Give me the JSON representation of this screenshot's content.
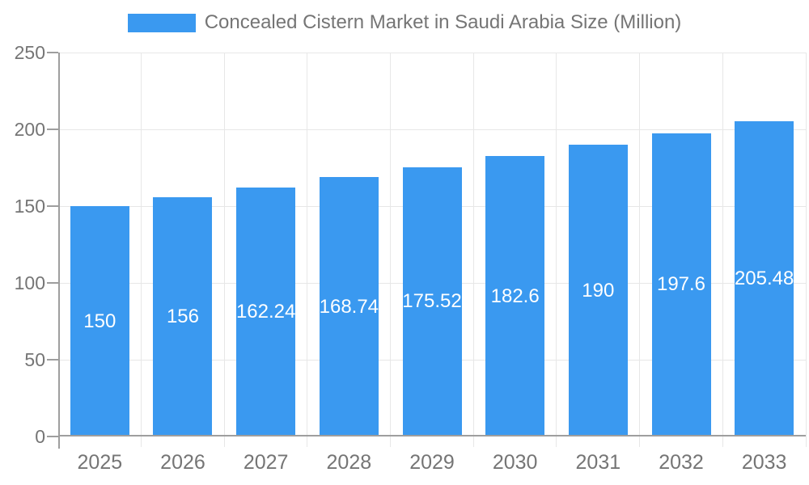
{
  "chart_data": {
    "type": "bar",
    "title": "Concealed Cistern Market in Saudi Arabia Size (Million)",
    "categories": [
      "2025",
      "2026",
      "2027",
      "2028",
      "2029",
      "2030",
      "2031",
      "2032",
      "2033"
    ],
    "values": [
      150,
      156,
      162.24,
      168.74,
      175.52,
      182.6,
      190,
      197.6,
      205.48
    ],
    "value_labels": [
      "150",
      "156",
      "162.24",
      "168.74",
      "175.52",
      "182.6",
      "190",
      "197.6",
      "205.48"
    ],
    "xlabel": "",
    "ylabel": "",
    "ylim": [
      0,
      250
    ],
    "yticks": [
      0,
      50,
      100,
      150,
      200,
      250
    ],
    "grid": "on",
    "legend_position": "top-center",
    "colors": {
      "bar": "#3A99F0",
      "axis": "#9E9E9E",
      "gridline": "#E7E7E7",
      "tick_text": "#757575",
      "title_text": "#757575",
      "value_label_text": "#FFFFFF",
      "background": "#FFFFFF"
    }
  }
}
